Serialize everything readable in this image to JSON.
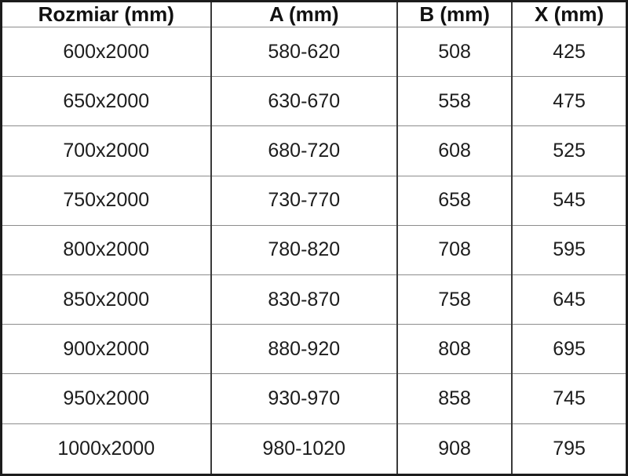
{
  "table": {
    "column_keys": [
      "rozmiar",
      "a",
      "b",
      "x"
    ],
    "columns": [
      "Rozmiar (mm)",
      "A (mm)",
      "B (mm)",
      "X (mm)"
    ],
    "rows": [
      [
        "600x2000",
        "580-620",
        "508",
        "425"
      ],
      [
        "650x2000",
        "630-670",
        "558",
        "475"
      ],
      [
        "700x2000",
        "680-720",
        "608",
        "525"
      ],
      [
        "750x2000",
        "730-770",
        "658",
        "545"
      ],
      [
        "800x2000",
        "780-820",
        "708",
        "595"
      ],
      [
        "850x2000",
        "830-870",
        "758",
        "645"
      ],
      [
        "900x2000",
        "880-920",
        "808",
        "695"
      ],
      [
        "950x2000",
        "930-970",
        "858",
        "745"
      ],
      [
        "1000x2000",
        "980-1020",
        "908",
        "795"
      ]
    ]
  },
  "colors": {
    "background": "#ffffff",
    "text": "#1d1d1d",
    "outer_border": "#1c1c1c",
    "vertical_rule": "#3a3a3a",
    "horizontal_rule": "#8c8c8c"
  }
}
